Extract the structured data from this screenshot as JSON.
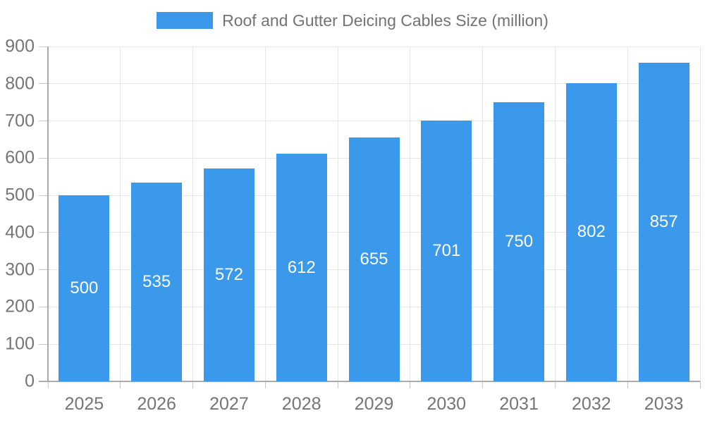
{
  "legend": {
    "label": "Roof and Gutter Deicing Cables Size (million)"
  },
  "colors": {
    "bar": "#3B99EC",
    "grid": "#e6e6e6",
    "axis": "#ababab",
    "tick": "#c6c6c6",
    "tick_label": "#757575",
    "bar_label": "#ffffff",
    "legend_text": "#737373",
    "background": "#ffffff"
  },
  "chart_data": {
    "type": "bar",
    "title": "Roof and Gutter Deicing Cables Size (million)",
    "categories": [
      "2025",
      "2026",
      "2027",
      "2028",
      "2029",
      "2030",
      "2031",
      "2032",
      "2033"
    ],
    "values": [
      500,
      535,
      572,
      612,
      655,
      701,
      750,
      802,
      857
    ],
    "series_name": "Roof and Gutter Deicing Cables Size (million)",
    "xlabel": "",
    "ylabel": "",
    "ylim": [
      0,
      900
    ],
    "ytick_step": 100,
    "ytick_labels": [
      "0",
      "100",
      "200",
      "300",
      "400",
      "500",
      "600",
      "700",
      "800",
      "900"
    ],
    "grid": true,
    "legend_position": "top",
    "bar_label_position": "inside-center"
  }
}
